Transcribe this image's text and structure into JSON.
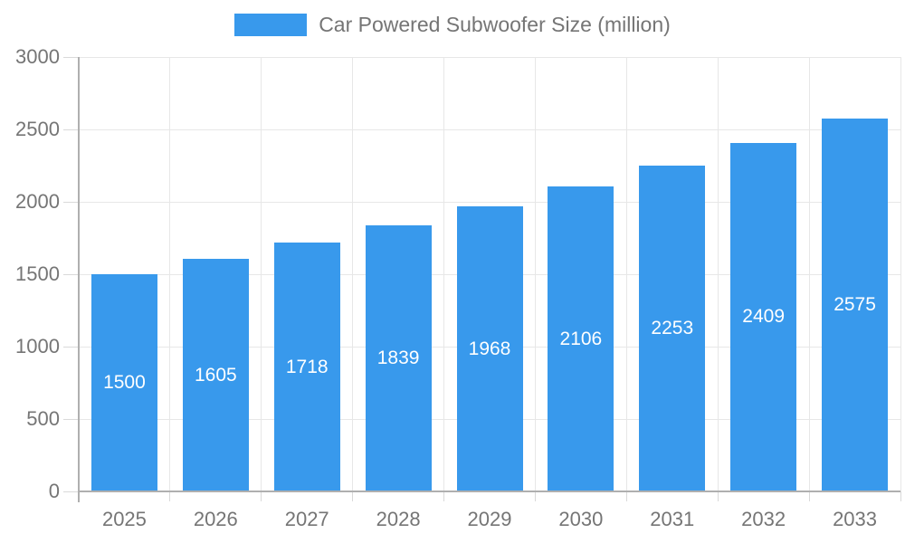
{
  "chart_data": {
    "type": "bar",
    "title": "Car Powered Subwoofer Size (million)",
    "categories": [
      "2025",
      "2026",
      "2027",
      "2028",
      "2029",
      "2030",
      "2031",
      "2032",
      "2033"
    ],
    "values": [
      1500,
      1605,
      1718,
      1839,
      1968,
      2106,
      2253,
      2409,
      2575
    ],
    "series": [
      {
        "name": "Car Powered Subwoofer Size (million)",
        "values": [
          1500,
          1605,
          1718,
          1839,
          1968,
          2106,
          2253,
          2409,
          2575
        ]
      }
    ],
    "xlabel": "",
    "ylabel": "",
    "ylim": [
      0,
      3000
    ],
    "yticks": [
      0,
      500,
      1000,
      1500,
      2000,
      2500,
      3000
    ],
    "grid": true,
    "legend_position": "top-center",
    "bar_value_labels_visible": true,
    "colors": {
      "bar": "#3899EC",
      "grid": "#E7E7E7",
      "axis": "#AFAFAF",
      "tick": "#D9D9D9",
      "text": "#757575",
      "bar_label": "#FFFFFF",
      "background": "#FFFFFF"
    }
  }
}
